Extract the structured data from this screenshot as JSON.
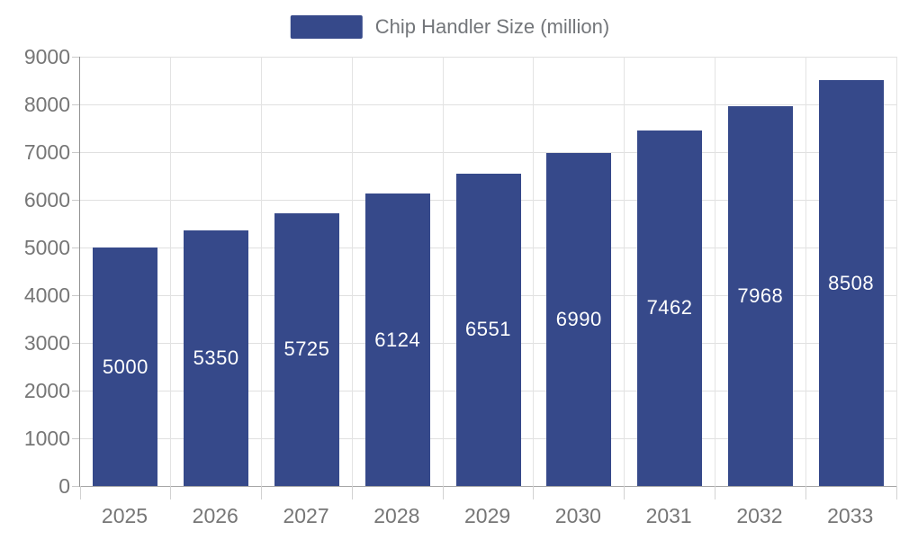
{
  "chart_data": {
    "type": "bar",
    "title": "Chip Handler Size (million)",
    "legend": {
      "label": "Chip Handler Size (million)",
      "position": "top"
    },
    "categories": [
      "2025",
      "2026",
      "2027",
      "2028",
      "2029",
      "2030",
      "2031",
      "2032",
      "2033"
    ],
    "series": [
      {
        "name": "Chip Handler Size (million)",
        "values": [
          5000,
          5350,
          5725,
          6124,
          6551,
          6990,
          7462,
          7968,
          8508
        ]
      }
    ],
    "data_labels_shown": true,
    "xlabel": "",
    "ylabel": "",
    "ylim": [
      0,
      9000
    ],
    "ytick_step": 1000,
    "y_tick_labels": [
      "0",
      "1000",
      "2000",
      "3000",
      "4000",
      "5000",
      "6000",
      "7000",
      "8000",
      "9000"
    ],
    "grid": true,
    "colors": {
      "bar": "#36498a",
      "bar_label_text": "#ffffff",
      "axis_label_text": "#767676",
      "legend_text": "#73767a",
      "gridline": "#e0e0e0",
      "background": "#ffffff"
    }
  }
}
